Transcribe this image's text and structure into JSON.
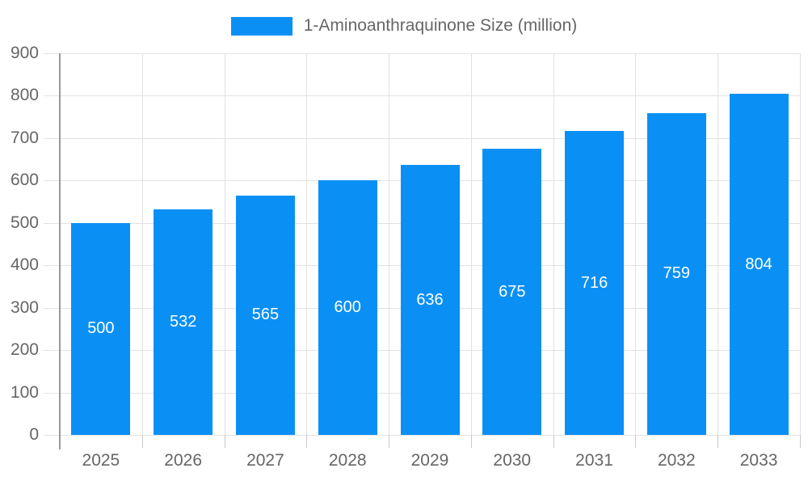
{
  "chart_data": {
    "type": "bar",
    "series_label": "1-Aminoanthraquinone Size (million)",
    "categories": [
      "2025",
      "2026",
      "2027",
      "2028",
      "2029",
      "2030",
      "2031",
      "2032",
      "2033"
    ],
    "values": [
      500,
      532,
      565,
      600,
      636,
      675,
      716,
      759,
      804
    ],
    "yticks": [
      0,
      100,
      200,
      300,
      400,
      500,
      600,
      700,
      800,
      900
    ],
    "ylim": [
      0,
      900
    ],
    "grid": true,
    "legend_position": "top-center",
    "value_label_position": "inside-center",
    "colors": {
      "bar": "#0a90f5",
      "grid_line": "#e2e2e2",
      "axis_line": "#999999",
      "tick_line": "#c9c9c9",
      "axis_text": "#666666",
      "value_text": "#ffffff",
      "background": "#ffffff"
    }
  }
}
